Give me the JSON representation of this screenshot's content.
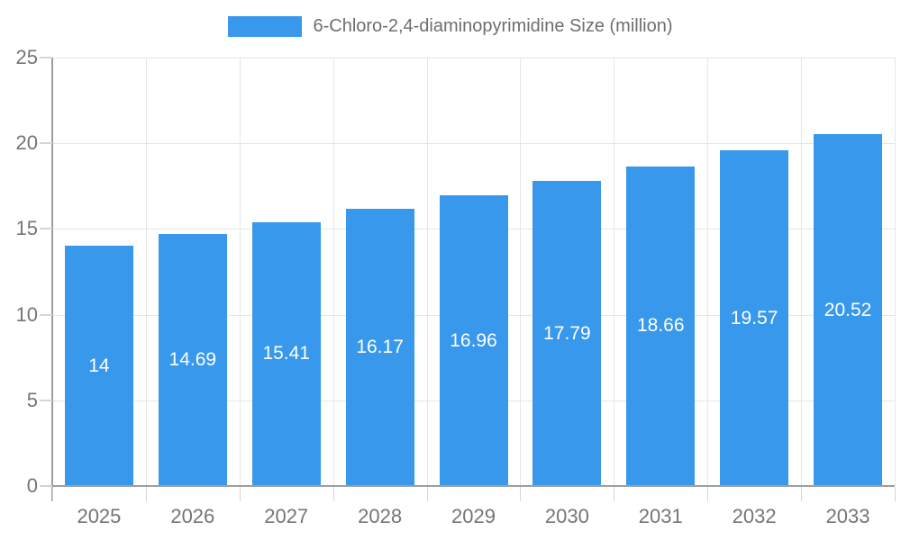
{
  "legend": {
    "label": "6-Chloro-2,4-diaminopyrimidine Size (million)"
  },
  "colors": {
    "bar": "#3898EC",
    "axis": "#9e9e9e",
    "grid": "#e6e6e6",
    "tick": "#d6d6d6",
    "tick_text": "#757575",
    "legend_text": "#6e6e6e",
    "bar_label_text": "#ffffff"
  },
  "chart_data": {
    "type": "bar",
    "title": "6-Chloro-2,4-diaminopyrimidine Size (million)",
    "categories": [
      "2025",
      "2026",
      "2027",
      "2028",
      "2029",
      "2030",
      "2031",
      "2032",
      "2033"
    ],
    "values": [
      14,
      14.69,
      15.41,
      16.17,
      16.96,
      17.79,
      18.66,
      19.57,
      20.52
    ],
    "value_labels": [
      "14",
      "14.69",
      "15.41",
      "16.17",
      "16.96",
      "17.79",
      "18.66",
      "19.57",
      "20.52"
    ],
    "xlabel": "",
    "ylabel": "",
    "yticks": [
      0,
      5,
      10,
      15,
      20,
      25
    ],
    "ylim": [
      0,
      25
    ],
    "grid": true,
    "legend_position": "top",
    "value_labels_inside_bars": true
  }
}
